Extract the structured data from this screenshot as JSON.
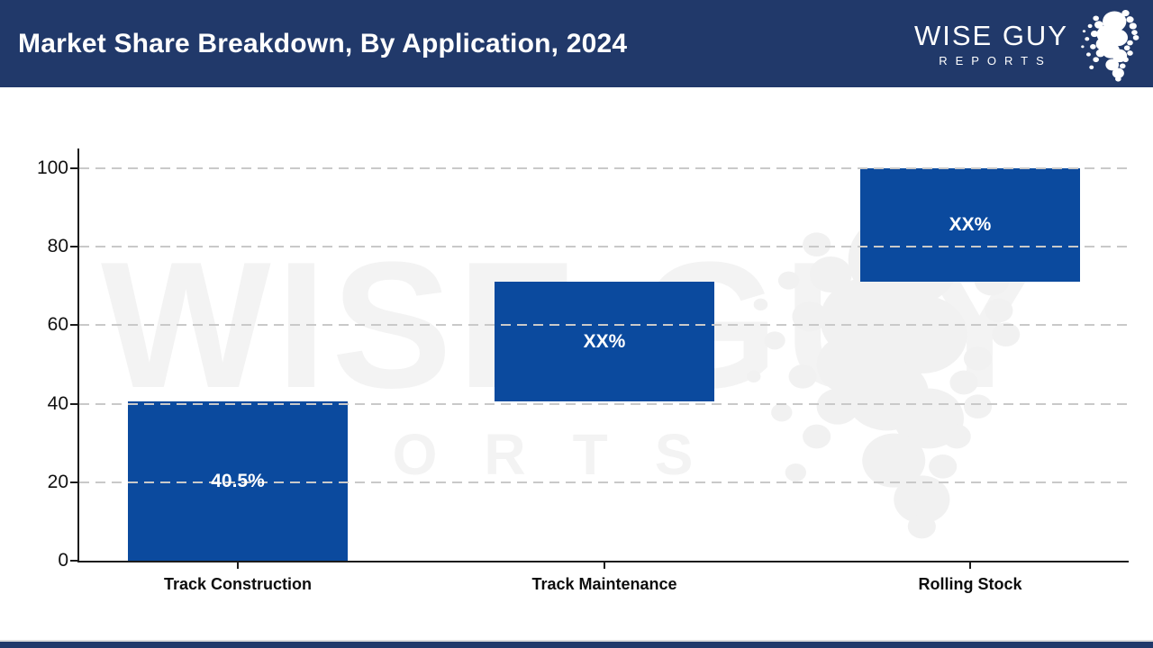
{
  "header": {
    "title": "Market Share Breakdown, By Application, 2024",
    "logo": {
      "line1": "WISE GUY",
      "line2": "REPORTS"
    }
  },
  "watermark": {
    "line1": "WISE GUY",
    "line2": "REPORTS"
  },
  "chart_data": {
    "type": "bar",
    "subtype": "waterfall",
    "title": "Market Share Breakdown, By Application, 2024",
    "categories": [
      "Track Construction",
      "Track Maintenance",
      "Rolling Stock"
    ],
    "segments": [
      {
        "category": "Track Construction",
        "start": 0,
        "end": 40.5,
        "label": "40.5%"
      },
      {
        "category": "Track Maintenance",
        "start": 40.5,
        "end": 71,
        "label": "XX%"
      },
      {
        "category": "Rolling Stock",
        "start": 71,
        "end": 100,
        "label": "XX%"
      }
    ],
    "xlabel": "",
    "ylabel": "",
    "ylim": [
      0,
      100
    ],
    "yticks": [
      0,
      20,
      40,
      60,
      80,
      100
    ],
    "grid": "horizontal-dashed",
    "legend": "none",
    "bar_color": "#0b4a9e",
    "bar_label_color": "#ffffff"
  },
  "colors": {
    "header_bg": "#21396a",
    "bar": "#0b4a9e",
    "axis": "#1c1c1c",
    "grid": "#c9c9c9",
    "footer_bg": "#21396a"
  }
}
